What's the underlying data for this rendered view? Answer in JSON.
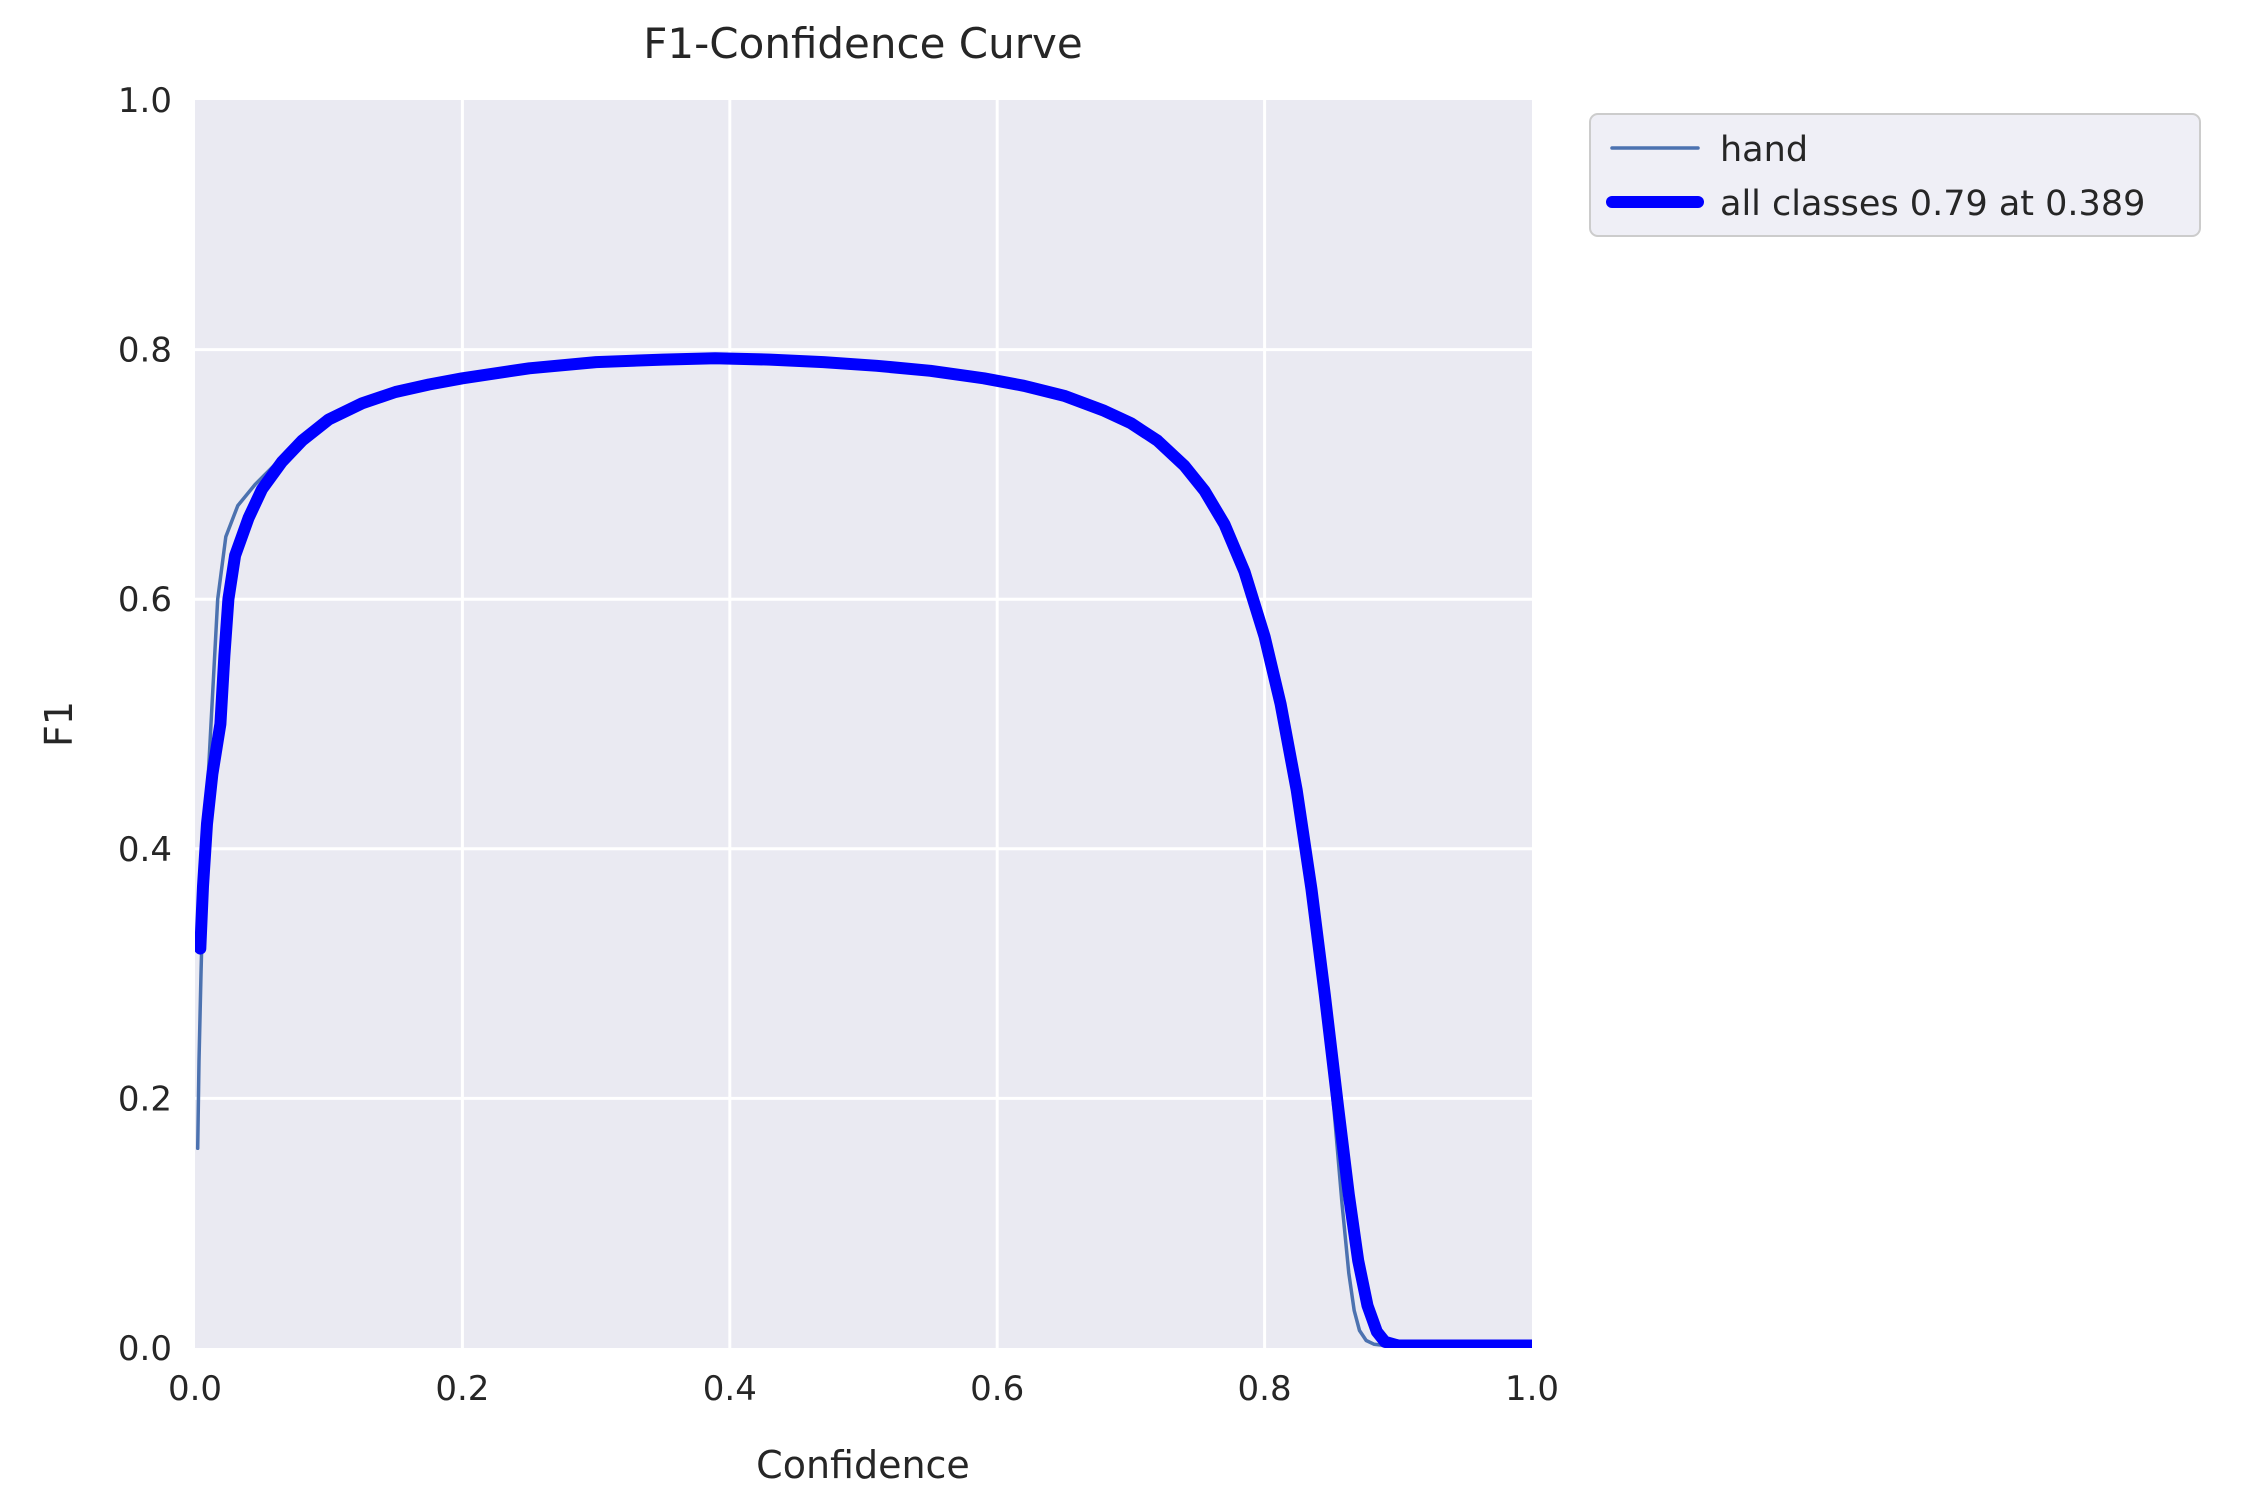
{
  "title": "F1-Confidence Curve",
  "axes": {
    "xlabel": "Confidence",
    "ylabel": "F1",
    "x_tick_labels": [
      "0.0",
      "0.2",
      "0.4",
      "0.6",
      "0.8",
      "1.0"
    ],
    "y_tick_labels": [
      "0.0",
      "0.2",
      "0.4",
      "0.6",
      "0.8",
      "1.0"
    ]
  },
  "legend": {
    "items": [
      {
        "label": "hand"
      },
      {
        "label": "all classes 0.79 at 0.389"
      }
    ]
  },
  "colors": {
    "figure_background": "#ffffff",
    "plot_background": "#eaeaf2",
    "grid": "#ffffff",
    "text": "#262626",
    "legend_background": "#efeff6",
    "legend_border": "#cccccc",
    "hand_line": "#4C72B0",
    "all_classes_line": "#0000ff"
  },
  "chart_data": {
    "type": "line",
    "title": "F1-Confidence Curve",
    "xlabel": "Confidence",
    "ylabel": "F1",
    "xlim": [
      0.0,
      1.0
    ],
    "ylim": [
      0.0,
      1.0
    ],
    "x_ticks": [
      0.0,
      0.2,
      0.4,
      0.6,
      0.8,
      1.0
    ],
    "y_ticks": [
      0.0,
      0.2,
      0.4,
      0.6,
      0.8,
      1.0
    ],
    "grid": true,
    "legend_position": "outside-upper-right",
    "best_f1": 0.79,
    "best_confidence": 0.389,
    "series": [
      {
        "name": "hand",
        "color": "#4C72B0",
        "linewidth": 3.5,
        "points": [
          [
            0.002,
            0.16
          ],
          [
            0.003,
            0.23
          ],
          [
            0.0045,
            0.3
          ],
          [
            0.006,
            0.36
          ],
          [
            0.008,
            0.42
          ],
          [
            0.012,
            0.5
          ],
          [
            0.017,
            0.6
          ],
          [
            0.023,
            0.65
          ],
          [
            0.032,
            0.675
          ],
          [
            0.045,
            0.692
          ],
          [
            0.06,
            0.708
          ],
          [
            0.08,
            0.725
          ],
          [
            0.1,
            0.743
          ],
          [
            0.125,
            0.756
          ],
          [
            0.15,
            0.765
          ],
          [
            0.175,
            0.771
          ],
          [
            0.2,
            0.776
          ],
          [
            0.25,
            0.784
          ],
          [
            0.3,
            0.789
          ],
          [
            0.35,
            0.791
          ],
          [
            0.389,
            0.792
          ],
          [
            0.43,
            0.791
          ],
          [
            0.47,
            0.789
          ],
          [
            0.51,
            0.786
          ],
          [
            0.55,
            0.782
          ],
          [
            0.59,
            0.776
          ],
          [
            0.62,
            0.77
          ],
          [
            0.65,
            0.762
          ],
          [
            0.68,
            0.75
          ],
          [
            0.7,
            0.739
          ],
          [
            0.72,
            0.725
          ],
          [
            0.74,
            0.704
          ],
          [
            0.755,
            0.683
          ],
          [
            0.77,
            0.655
          ],
          [
            0.785,
            0.616
          ],
          [
            0.8,
            0.562
          ],
          [
            0.812,
            0.507
          ],
          [
            0.824,
            0.437
          ],
          [
            0.835,
            0.356
          ],
          [
            0.845,
            0.268
          ],
          [
            0.852,
            0.19
          ],
          [
            0.858,
            0.115
          ],
          [
            0.863,
            0.06
          ],
          [
            0.867,
            0.03
          ],
          [
            0.871,
            0.014
          ],
          [
            0.876,
            0.006
          ],
          [
            0.882,
            0.003
          ],
          [
            0.89,
            0.002
          ],
          [
            1.0,
            0.002
          ]
        ]
      },
      {
        "name": "all classes 0.79 at 0.389",
        "color": "#0000ff",
        "linewidth": 12,
        "points": [
          [
            0.004,
            0.32
          ],
          [
            0.006,
            0.37
          ],
          [
            0.009,
            0.42
          ],
          [
            0.013,
            0.46
          ],
          [
            0.019,
            0.5
          ],
          [
            0.022,
            0.555
          ],
          [
            0.025,
            0.6
          ],
          [
            0.03,
            0.635
          ],
          [
            0.04,
            0.665
          ],
          [
            0.05,
            0.688
          ],
          [
            0.065,
            0.71
          ],
          [
            0.08,
            0.727
          ],
          [
            0.1,
            0.744
          ],
          [
            0.125,
            0.757
          ],
          [
            0.15,
            0.766
          ],
          [
            0.175,
            0.772
          ],
          [
            0.2,
            0.777
          ],
          [
            0.25,
            0.785
          ],
          [
            0.3,
            0.79
          ],
          [
            0.35,
            0.792
          ],
          [
            0.389,
            0.793
          ],
          [
            0.43,
            0.792
          ],
          [
            0.47,
            0.79
          ],
          [
            0.51,
            0.787
          ],
          [
            0.55,
            0.783
          ],
          [
            0.59,
            0.777
          ],
          [
            0.62,
            0.771
          ],
          [
            0.65,
            0.763
          ],
          [
            0.68,
            0.751
          ],
          [
            0.7,
            0.741
          ],
          [
            0.72,
            0.727
          ],
          [
            0.74,
            0.707
          ],
          [
            0.755,
            0.687
          ],
          [
            0.77,
            0.66
          ],
          [
            0.785,
            0.622
          ],
          [
            0.8,
            0.57
          ],
          [
            0.812,
            0.516
          ],
          [
            0.824,
            0.447
          ],
          [
            0.835,
            0.368
          ],
          [
            0.845,
            0.283
          ],
          [
            0.855,
            0.193
          ],
          [
            0.863,
            0.123
          ],
          [
            0.87,
            0.07
          ],
          [
            0.877,
            0.034
          ],
          [
            0.884,
            0.013
          ],
          [
            0.89,
            0.005
          ],
          [
            0.9,
            0.002
          ],
          [
            1.0,
            0.002
          ]
        ]
      }
    ]
  }
}
